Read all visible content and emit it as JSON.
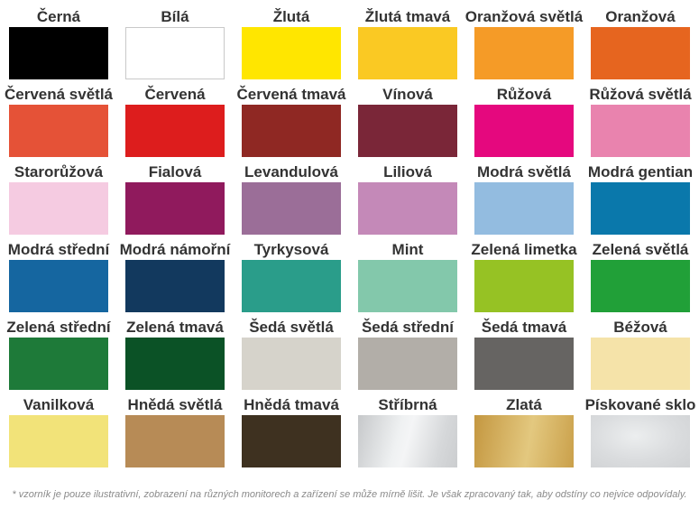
{
  "page": {
    "background": "#ffffff",
    "label_color": "#333333"
  },
  "grid": {
    "columns": 6,
    "rows": 6
  },
  "swatches": [
    {
      "label": "Černá",
      "finish": "solid",
      "color": "#000000"
    },
    {
      "label": "Bílá",
      "finish": "solid",
      "color": "#ffffff",
      "border": "#c9c9c9"
    },
    {
      "label": "Žlutá",
      "finish": "solid",
      "color": "#ffe600"
    },
    {
      "label": "Žlutá tmavá",
      "finish": "solid",
      "color": "#fac923"
    },
    {
      "label": "Oranžová světlá",
      "finish": "solid",
      "color": "#f59b27"
    },
    {
      "label": "Oranžová",
      "finish": "solid",
      "color": "#e6651f"
    },
    {
      "label": "Červená světlá",
      "finish": "solid",
      "color": "#e55237"
    },
    {
      "label": "Červená",
      "finish": "solid",
      "color": "#dd1d1d"
    },
    {
      "label": "Červená tmavá",
      "finish": "solid",
      "color": "#8f2823"
    },
    {
      "label": "Vínová",
      "finish": "solid",
      "color": "#7a2638"
    },
    {
      "label": "Růžová",
      "finish": "solid",
      "color": "#e5087e"
    },
    {
      "label": "Růžová světlá",
      "finish": "solid",
      "color": "#e983ae"
    },
    {
      "label": "Starorůžová",
      "finish": "solid",
      "color": "#f5cbe1"
    },
    {
      "label": "Fialová",
      "finish": "solid",
      "color": "#901a5d"
    },
    {
      "label": "Levandulová",
      "finish": "solid",
      "color": "#9b6e98"
    },
    {
      "label": "Liliová",
      "finish": "solid",
      "color": "#c489b8"
    },
    {
      "label": "Modrá světlá",
      "finish": "solid",
      "color": "#93bce0"
    },
    {
      "label": "Modrá gentian",
      "finish": "solid",
      "color": "#0a78ab"
    },
    {
      "label": "Modrá střední",
      "finish": "solid",
      "color": "#1566a0"
    },
    {
      "label": "Modrá námořní",
      "finish": "solid",
      "color": "#12395e"
    },
    {
      "label": "Tyrkysová",
      "finish": "solid",
      "color": "#2a9d8a"
    },
    {
      "label": "Mint",
      "finish": "solid",
      "color": "#83c8ab"
    },
    {
      "label": "Zelená limetka",
      "finish": "solid",
      "color": "#96c224"
    },
    {
      "label": "Zelená světlá",
      "finish": "solid",
      "color": "#21a038"
    },
    {
      "label": "Zelená střední",
      "finish": "solid",
      "color": "#1e7a39"
    },
    {
      "label": "Zelená tmavá",
      "finish": "solid",
      "color": "#0b5226"
    },
    {
      "label": "Šedá světlá",
      "finish": "solid",
      "color": "#d6d3cb"
    },
    {
      "label": "Šedá střední",
      "finish": "solid",
      "color": "#b2aea8"
    },
    {
      "label": "Šedá tmavá",
      "finish": "solid",
      "color": "#666462"
    },
    {
      "label": "Béžová",
      "finish": "solid",
      "color": "#f5e3a9"
    },
    {
      "label": "Vanilková",
      "finish": "solid",
      "color": "#f2e379"
    },
    {
      "label": "Hnědá světlá",
      "finish": "solid",
      "color": "#b78b56"
    },
    {
      "label": "Hnědá tmavá",
      "finish": "solid",
      "color": "#3e3120"
    },
    {
      "label": "Stříbrná",
      "finish": "metallic",
      "angle": "105deg",
      "gradient": [
        "#c6c8ca 0%",
        "#eff1f2 40%",
        "#f4f5f6 50%",
        "#d6d8da 80%",
        "#cbcdcf 100%"
      ]
    },
    {
      "label": "Zlatá",
      "finish": "metallic",
      "angle": "100deg",
      "gradient": [
        "#c49740 0%",
        "#e3c87f 55%",
        "#caa04a 100%"
      ]
    },
    {
      "label": "Pískované sklo",
      "finish": "frosted",
      "gradient": [
        "#eceeef 0%",
        "#dadcde 55%",
        "#d0d2d4 100%"
      ]
    }
  ],
  "footnote": {
    "text": "* vzorník je pouze ilustrativní, zobrazení na různých monitorech a zařízení se může mírně lišit. Je však zpracovaný tak, aby odstíny co nejvice odpovídaly."
  }
}
